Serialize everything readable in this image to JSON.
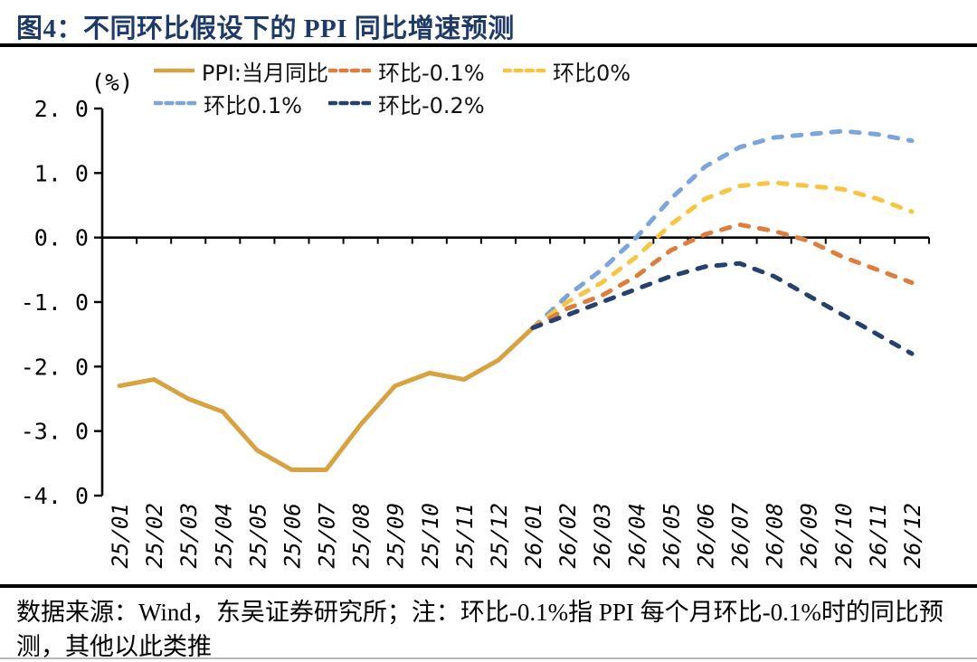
{
  "title": "图4：不同环比假设下的 PPI 同比增速预测",
  "unit_label": "(%)",
  "legend": [
    {
      "key": "ppi-actual",
      "label": "PPI:当月同比",
      "color": "#d6a242",
      "style": "solid"
    },
    {
      "key": "mom-minus-0-1",
      "label": "环比-0.1%",
      "color": "#dd7e3e",
      "style": "dashed"
    },
    {
      "key": "mom-0",
      "label": "环比0%",
      "color": "#f6c543",
      "style": "dashed"
    },
    {
      "key": "mom-plus-0-1",
      "label": "环比0.1%",
      "color": "#7ca5dc",
      "style": "dashed"
    },
    {
      "key": "mom-minus-0-2",
      "label": "环比-0.2%",
      "color": "#27416f",
      "style": "dashed"
    }
  ],
  "footer": {
    "note_line1": "数据来源：Wind，东吴证券研究所；注：环比-0.1%指 PPI 每个月环比-0.1%时的同比预",
    "note_line2": "测，其他以此类推"
  },
  "chart_data": {
    "type": "line",
    "title": "不同环比假设下的 PPI 同比增速预测",
    "xlabel": "",
    "ylabel": "(%)",
    "ylim": [
      -4.0,
      2.0
    ],
    "ytick_labels": [
      "2. 0",
      "1. 0",
      "0. 0",
      "-1. 0",
      "-2. 0",
      "-3. 0",
      "-4. 0"
    ],
    "grid": false,
    "legend_position": "top",
    "categories": [
      "25/01",
      "25/02",
      "25/03",
      "25/04",
      "25/05",
      "25/06",
      "25/07",
      "25/08",
      "25/09",
      "25/10",
      "25/11",
      "25/12",
      "26/01",
      "26/02",
      "26/03",
      "26/04",
      "26/05",
      "26/06",
      "26/07",
      "26/08",
      "26/09",
      "26/10",
      "26/11",
      "26/12"
    ],
    "series": [
      {
        "key": "ppi-actual",
        "name": "PPI:当月同比",
        "color": "#d6a242",
        "dash": false,
        "start": 0,
        "values": [
          -2.3,
          -2.2,
          -2.5,
          -2.7,
          -3.3,
          -3.6,
          -3.6,
          -2.9,
          -2.3,
          -2.1,
          -2.2,
          -1.9,
          -1.4
        ]
      },
      {
        "key": "mom-plus-0-1",
        "name": "环比0.1%",
        "color": "#7ca5dc",
        "dash": true,
        "start": 12,
        "values": [
          -1.4,
          -0.9,
          -0.5,
          0.0,
          0.6,
          1.1,
          1.4,
          1.55,
          1.6,
          1.65,
          1.6,
          1.5
        ]
      },
      {
        "key": "mom-0",
        "name": "环比0%",
        "color": "#f6c543",
        "dash": true,
        "start": 12,
        "values": [
          -1.4,
          -1.0,
          -0.7,
          -0.3,
          0.2,
          0.6,
          0.8,
          0.85,
          0.8,
          0.75,
          0.6,
          0.4
        ]
      },
      {
        "key": "mom-minus-0-1",
        "name": "环比-0.1%",
        "color": "#dd7e3e",
        "dash": true,
        "start": 12,
        "values": [
          -1.4,
          -1.1,
          -0.9,
          -0.6,
          -0.2,
          0.05,
          0.2,
          0.1,
          -0.05,
          -0.3,
          -0.5,
          -0.7
        ]
      },
      {
        "key": "mom-minus-0-2",
        "name": "环比-0.2%",
        "color": "#27416f",
        "dash": true,
        "start": 12,
        "values": [
          -1.4,
          -1.2,
          -1.0,
          -0.8,
          -0.6,
          -0.45,
          -0.4,
          -0.6,
          -0.9,
          -1.2,
          -1.5,
          -1.8
        ]
      }
    ]
  }
}
